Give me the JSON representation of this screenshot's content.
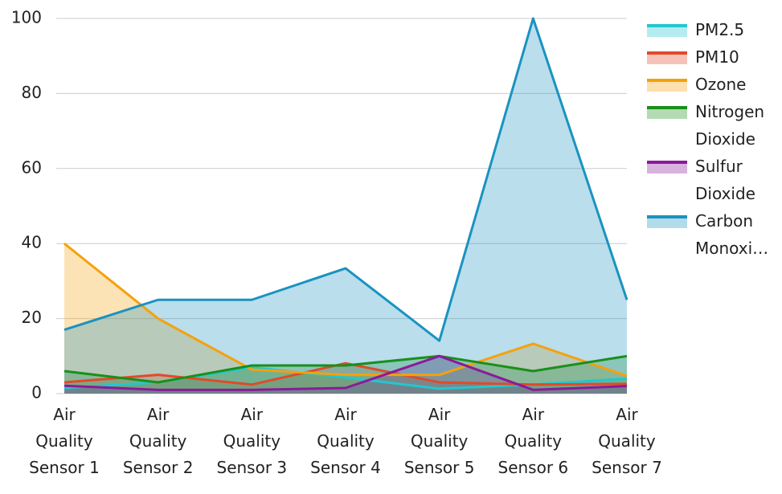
{
  "chart_data": {
    "type": "area",
    "categories": [
      "Air Quality Sensor 1",
      "Air Quality Sensor 2",
      "Air Quality Sensor 3",
      "Air Quality Sensor 4",
      "Air Quality Sensor 5",
      "Air Quality Sensor 6",
      "Air Quality Sensor 7"
    ],
    "series": [
      {
        "name": "PM2.5",
        "color": "#22c7d0",
        "values": [
          1.5,
          3,
          7,
          4.3,
          1.3,
          2.4,
          4
        ]
      },
      {
        "name": "PM10",
        "color": "#e04a2a",
        "values": [
          3,
          5,
          2.4,
          8.1,
          3,
          2.4,
          2.6
        ]
      },
      {
        "name": "Ozone",
        "color": "#f5a10c",
        "values": [
          40,
          20,
          6.4,
          5,
          5,
          13.3,
          4.7
        ]
      },
      {
        "name": "Nitrogen Dioxide",
        "color": "#1a8f1a",
        "values": [
          6,
          3,
          7.5,
          7.5,
          10,
          6,
          10
        ]
      },
      {
        "name": "Sulfur Dioxide",
        "color": "#8b1a9b",
        "values": [
          2.1,
          1,
          1,
          1.5,
          10,
          1,
          2
        ]
      },
      {
        "name": "Carbon Monoxi…",
        "color": "#1a93c0",
        "values": [
          17,
          25,
          25,
          33.4,
          14.1,
          100,
          25
        ]
      }
    ],
    "ylim": [
      0,
      100
    ],
    "yticks": [
      0,
      20,
      40,
      60,
      80,
      100
    ],
    "grid": true,
    "legend": "right"
  }
}
